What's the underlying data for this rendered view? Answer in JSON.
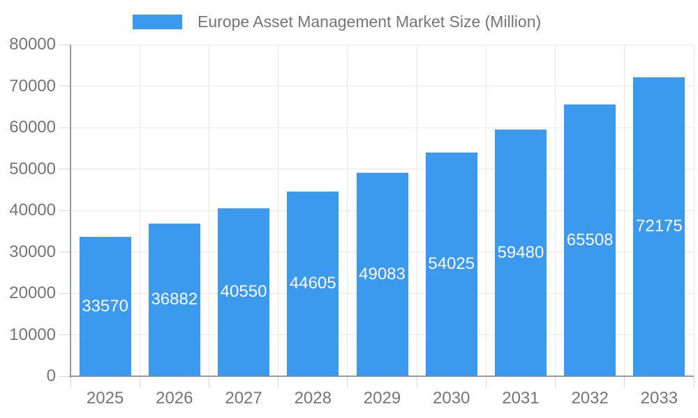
{
  "chart_data": {
    "type": "bar",
    "title": "Europe Asset Management Market Size (Million)",
    "legend": [
      "Europe Asset Management Market Size (Million)"
    ],
    "legend_position": "top",
    "categories": [
      "2025",
      "2026",
      "2027",
      "2028",
      "2029",
      "2030",
      "2031",
      "2032",
      "2033"
    ],
    "values": [
      33570,
      36882,
      40550,
      44605,
      49083,
      54025,
      59480,
      65508,
      72175
    ],
    "value_labels": [
      "33570",
      "36882",
      "40550",
      "44605",
      "49083",
      "54025",
      "59480",
      "65508",
      "72175"
    ],
    "xlabel": "",
    "ylabel": "",
    "ylim": [
      0,
      80000
    ],
    "y_tick_step": 10000,
    "y_tick_labels": [
      "0",
      "10000",
      "20000",
      "30000",
      "40000",
      "50000",
      "60000",
      "70000",
      "80000"
    ],
    "grid": true,
    "value_label_position": "inside-center",
    "colors": {
      "bar": "#3B99EE",
      "bar_label_text": "#FFFFFF",
      "axis_line": "#999999",
      "tick_line": "#D4D4D4",
      "grid_line": "#E8E8E8",
      "label_text": "#757575",
      "background": "#FFFFFF"
    }
  }
}
